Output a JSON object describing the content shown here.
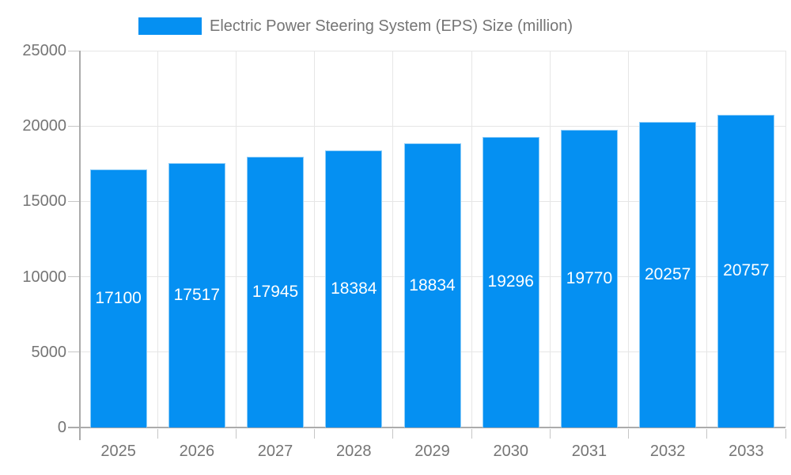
{
  "legend": {
    "label": "Electric Power Steering System (EPS) Size (million)",
    "swatch_color": "#0590f2",
    "position": "top"
  },
  "chart_data": {
    "type": "bar",
    "title": "Electric Power Steering System (EPS) Size (million)",
    "categories": [
      "2025",
      "2026",
      "2027",
      "2028",
      "2029",
      "2030",
      "2031",
      "2032",
      "2033"
    ],
    "values": [
      17100,
      17517,
      17945,
      18384,
      18834,
      19296,
      19770,
      20257,
      20757
    ],
    "series_name": "Electric Power Steering System (EPS) Size (million)",
    "xlabel": "",
    "ylabel": "",
    "ylim": [
      0,
      25000
    ],
    "yticks": [
      0,
      5000,
      10000,
      15000,
      20000,
      25000
    ],
    "grid": "on",
    "legend_position": "top",
    "bar_color": "#0590f2",
    "bar_border_color": "#8ecdf8",
    "value_label_color": "#ffffff",
    "axis_text_color": "#757575",
    "gridline_color": "#e6e6e6",
    "axis_line_color": "#ababab"
  }
}
